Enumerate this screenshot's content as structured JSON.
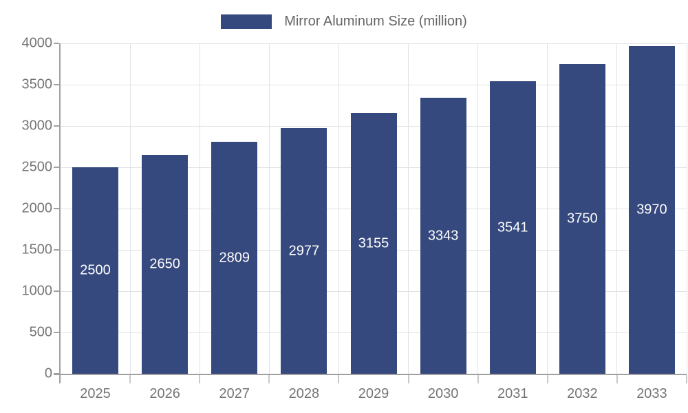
{
  "legend": {
    "label": "Mirror Aluminum Size (million)"
  },
  "chart_data": {
    "type": "bar",
    "title": "Mirror Aluminum Size (million)",
    "series_name": "Mirror Aluminum Size (million)",
    "categories": [
      "2025",
      "2026",
      "2027",
      "2028",
      "2029",
      "2030",
      "2031",
      "2032",
      "2033"
    ],
    "values": [
      2500,
      2650,
      2809,
      2977,
      3155,
      3343,
      3541,
      3750,
      3970
    ],
    "data_labels_visible": true,
    "xlabel": "",
    "ylabel": "",
    "ylim": [
      0,
      4000
    ],
    "yticks": [
      0,
      500,
      1000,
      1500,
      2000,
      2500,
      3000,
      3500,
      4000
    ],
    "grid": "horizontal-and-vertical",
    "legend_position": "top-center",
    "colors": {
      "bar": "#36497E",
      "bar_label": "#FFFFFF",
      "axis_text": "#757575",
      "legend_text": "#666666",
      "grid": "#E2E2E2",
      "grid_dark": "#C8C8C8",
      "axis_line": "#A0A0A0",
      "background": "#FFFFFF"
    }
  }
}
